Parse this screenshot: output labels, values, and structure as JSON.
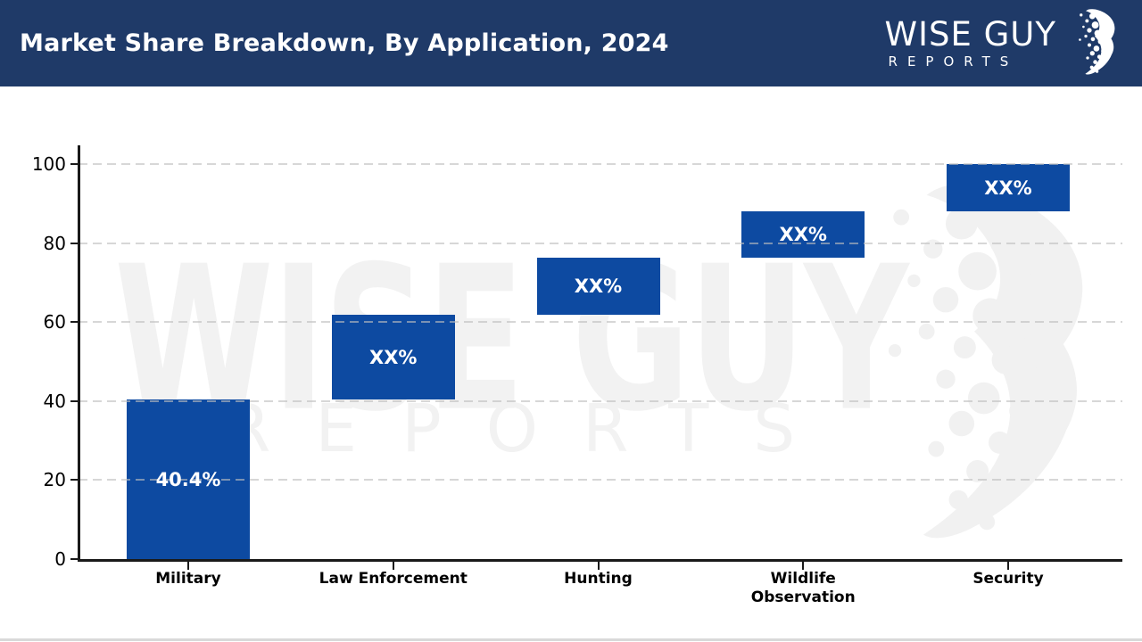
{
  "header": {
    "title": "Market Share Breakdown, By Application, 2024",
    "bg_color": "#1f3a68",
    "logo": {
      "line1": "WISE GUY",
      "line2": "REPORTS"
    }
  },
  "watermark": {
    "line1": "WISE GUY",
    "line2": "REPORTS"
  },
  "chart_data": {
    "type": "bar",
    "subtype": "waterfall",
    "title": "Market Share Breakdown, By Application, 2024",
    "categories": [
      "Military",
      "Law Enforcement",
      "Hunting",
      "Wildlife\nObservation",
      "Security"
    ],
    "segments": [
      {
        "category": "Military",
        "start": 0,
        "end": 40.4,
        "value_label": "40.4%"
      },
      {
        "category": "Law Enforcement",
        "start": 40.4,
        "end": 61.8,
        "value_label": "XX%"
      },
      {
        "category": "Hunting",
        "start": 61.8,
        "end": 76.4,
        "value_label": "XX%"
      },
      {
        "category": "Wildlife Observation",
        "start": 76.4,
        "end": 88.0,
        "value_label": "XX%"
      },
      {
        "category": "Security",
        "start": 88.0,
        "end": 100.0,
        "value_label": "XX%"
      }
    ],
    "y_ticks": [
      0,
      20,
      40,
      60,
      80,
      100
    ],
    "ylim": [
      0,
      105
    ],
    "xlabel": "",
    "ylabel": "",
    "grid": "horizontal-dashed",
    "legend": "none",
    "bar_color": "#0d4aa1",
    "value_label_color": "#ffffff",
    "axis_color": "#1a1a1a"
  }
}
